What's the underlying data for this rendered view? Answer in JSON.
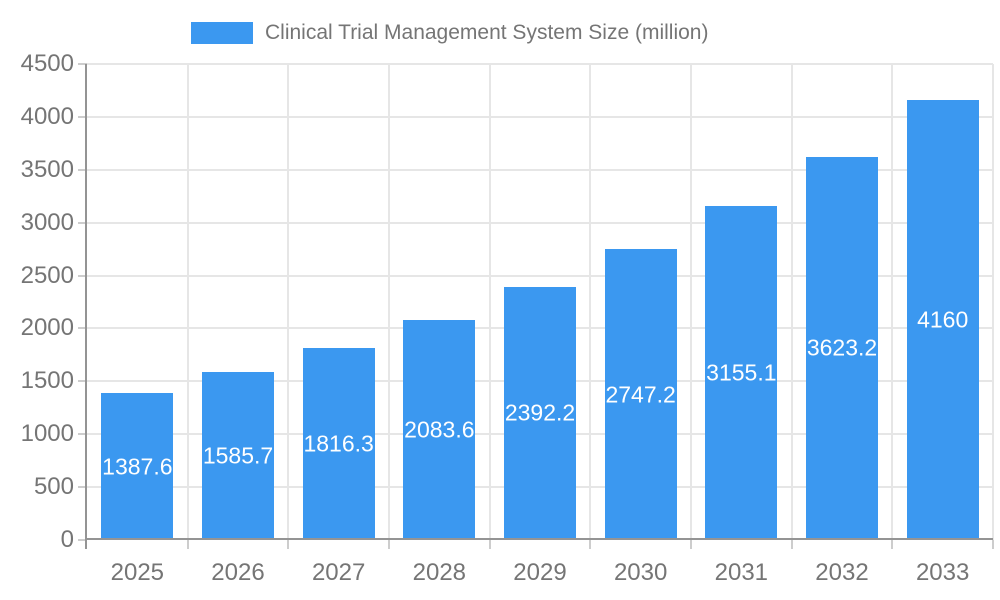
{
  "chart_data": {
    "type": "bar",
    "title": "Clinical Trial Management System Size (million)",
    "legend_position": "top",
    "categories": [
      "2025",
      "2026",
      "2027",
      "2028",
      "2029",
      "2030",
      "2031",
      "2032",
      "2033"
    ],
    "series": [
      {
        "name": "Clinical Trial Management System Size (million)",
        "values": [
          1387.6,
          1585.7,
          1816.3,
          2083.6,
          2392.2,
          2747.2,
          3155.1,
          3623.2,
          4160
        ]
      }
    ],
    "value_labels": [
      "1387.6",
      "1585.7",
      "1816.3",
      "2083.6",
      "2392.2",
      "2747.2",
      "3155.1",
      "3623.2",
      "4160"
    ],
    "xlabel": "",
    "ylabel": "",
    "ylim": [
      0,
      4500
    ],
    "yticks": [
      "0",
      "500",
      "1000",
      "1500",
      "2000",
      "2500",
      "3000",
      "3500",
      "4000",
      "4500"
    ],
    "grid": "both",
    "value_label_position": "inside-center",
    "colors": {
      "bar": "#3B98F0",
      "axis": "#949494",
      "gridline": "#E6E6E6",
      "tick": "#CDCDCD",
      "axis_label": "#757575",
      "title": "#757575",
      "value_label": "#FFFFFF",
      "background": "#FFFFFF"
    }
  }
}
